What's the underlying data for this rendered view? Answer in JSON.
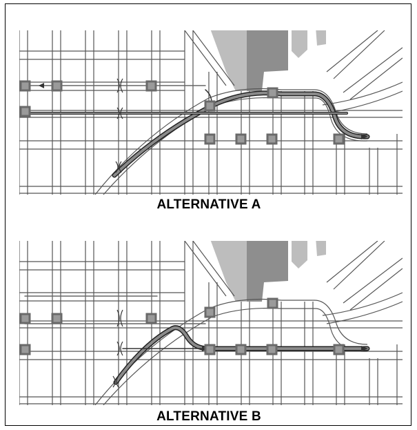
{
  "figure": {
    "panels": [
      {
        "id": "a",
        "caption": "ALTERNATIVE A"
      },
      {
        "id": "b",
        "caption": "ALTERNATIVE B"
      }
    ]
  },
  "colors": {
    "street": "#555555",
    "block": "#ffffff",
    "park_light": "#bdbdbd",
    "park_dark": "#8e8e8e",
    "route": "#707070",
    "station_fill": "#9a9a9a",
    "station_border": "#6a6a6a"
  },
  "icons": {
    "station": "square-station-icon",
    "arrow": "route-arrow-icon"
  }
}
